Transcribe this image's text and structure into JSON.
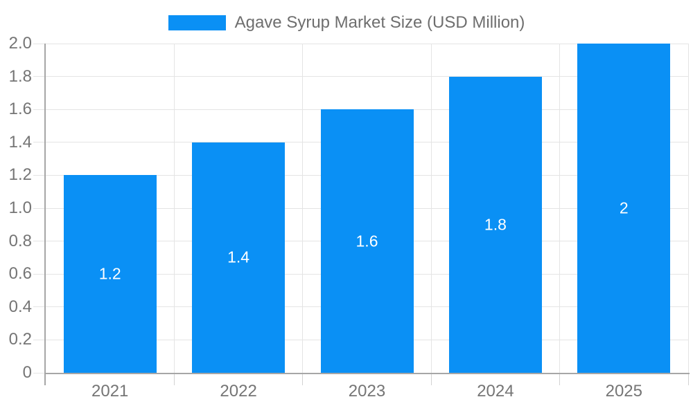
{
  "chart_data": {
    "type": "bar",
    "title": "Agave Syrup Market Size (USD Million)",
    "categories": [
      "2021",
      "2022",
      "2023",
      "2024",
      "2025"
    ],
    "values": [
      1.2,
      1.4,
      1.6,
      1.8,
      2
    ],
    "bar_labels": [
      "1.2",
      "1.4",
      "1.6",
      "1.8",
      "2"
    ],
    "xlabel": "",
    "ylabel": "",
    "ylim": [
      0,
      2
    ],
    "y_tick_labels": [
      "0",
      "0.2",
      "0.4",
      "0.6",
      "0.8",
      "1.0",
      "1.2",
      "1.4",
      "1.6",
      "1.8",
      "2.0"
    ],
    "grid": true,
    "legend_position": "top-center",
    "series_color": "#0a90f5",
    "bar_label_color": "#ffffff",
    "axis_text_color": "#757575",
    "gridline_color": "#e4e4e4",
    "axis_line_color": "#a6a6a6"
  }
}
